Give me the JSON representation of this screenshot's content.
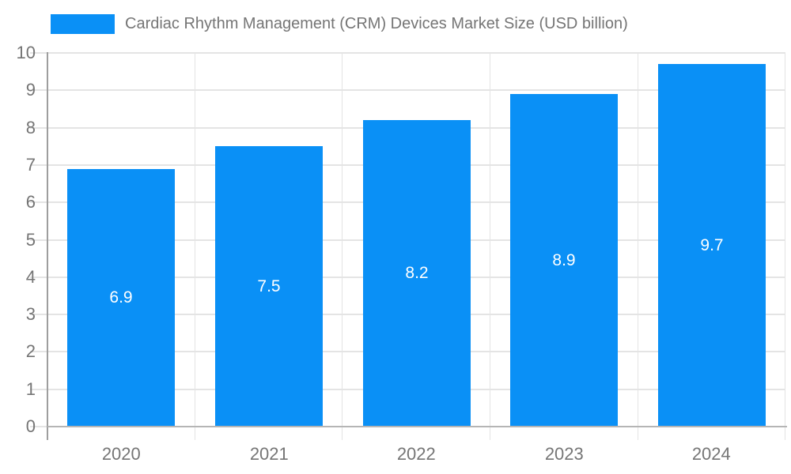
{
  "chart_data": {
    "type": "bar",
    "title": "Cardiac Rhythm Management (CRM) Devices Market Size (USD billion)",
    "categories": [
      "2020",
      "2021",
      "2022",
      "2023",
      "2024"
    ],
    "values": [
      6.9,
      7.5,
      8.2,
      8.9,
      9.7
    ],
    "value_labels": [
      "6.9",
      "7.5",
      "8.2",
      "8.9",
      "9.7"
    ],
    "xlabel": "",
    "ylabel": "",
    "ylim": [
      0,
      10
    ],
    "yticks": [
      0,
      1,
      2,
      3,
      4,
      5,
      6,
      7,
      8,
      9,
      10
    ],
    "grid": true,
    "legend_position": "top-left",
    "colors": {
      "bar": "#0a90f6",
      "bar_value_text": "#ffffff",
      "axis_text": "#757575",
      "legend_text": "#757575",
      "gridline": "#e4e4e4",
      "axis_line": "#9e9e9e",
      "background": "#ffffff"
    }
  }
}
